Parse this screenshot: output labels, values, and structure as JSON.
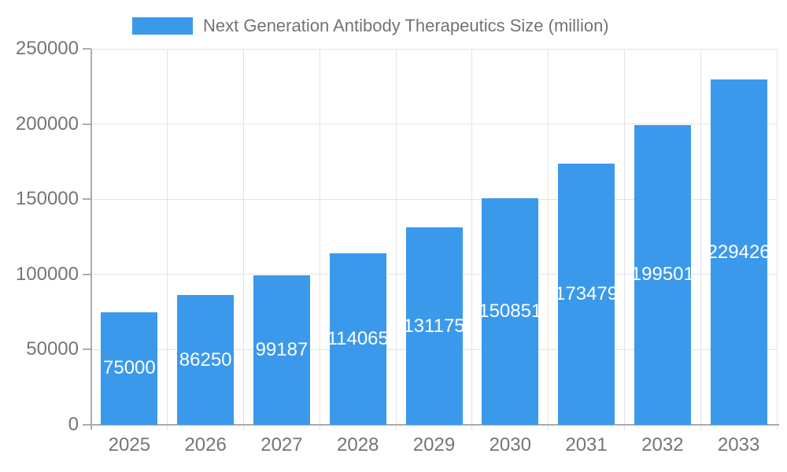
{
  "colors": {
    "bar": "#3B99EC",
    "bar_label": "#FFFFFF",
    "axis_text": "#757575",
    "legend_text": "#737373",
    "grid": "#E3E3E3",
    "tick": "#ADADAD",
    "axis_line": "#ABABAB"
  },
  "chart_data": {
    "type": "bar",
    "series_name": "Next Generation Antibody Therapeutics Size (million)",
    "categories": [
      "2025",
      "2026",
      "2027",
      "2028",
      "2029",
      "2030",
      "2031",
      "2032",
      "2033"
    ],
    "values": [
      75000,
      86250,
      99187,
      114065,
      131175,
      150851,
      173479,
      199501,
      229426
    ],
    "title": "",
    "xlabel": "",
    "ylabel": "",
    "ylim": [
      0,
      250000
    ],
    "yticks": [
      0,
      50000,
      100000,
      150000,
      200000,
      250000
    ],
    "grid": true,
    "legend_position": "top",
    "bar_labels_visible": true,
    "bar_label_position": "center"
  }
}
